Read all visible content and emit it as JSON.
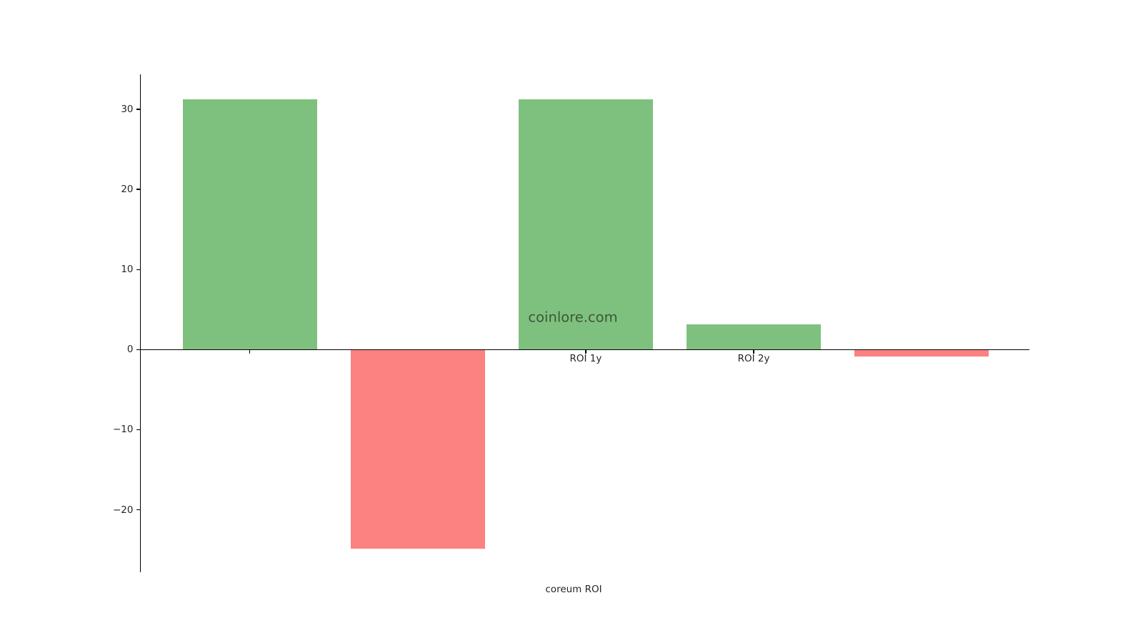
{
  "watermark": "coinlore.com",
  "chart_data": {
    "type": "bar",
    "title": "",
    "xlabel": "coreum ROI",
    "ylabel": "",
    "categories": [
      "",
      "",
      "ROI 1y",
      "ROI 2y",
      ""
    ],
    "values": [
      31.2,
      -24.9,
      31.2,
      3.1,
      -0.9
    ],
    "y_ticks": [
      30,
      20,
      10,
      0,
      -10,
      -20
    ],
    "ylim": [
      -27.9,
      34.3
    ],
    "grid": false,
    "legend": "none",
    "baseline": 0,
    "bar_color_rule": "green if positive, red if negative",
    "colors": {
      "positive_bar": "#7ec17e",
      "negative_bar": "#fc8181",
      "axis": "#000000",
      "tick_text": "#262626",
      "background": "#ffffff"
    }
  }
}
